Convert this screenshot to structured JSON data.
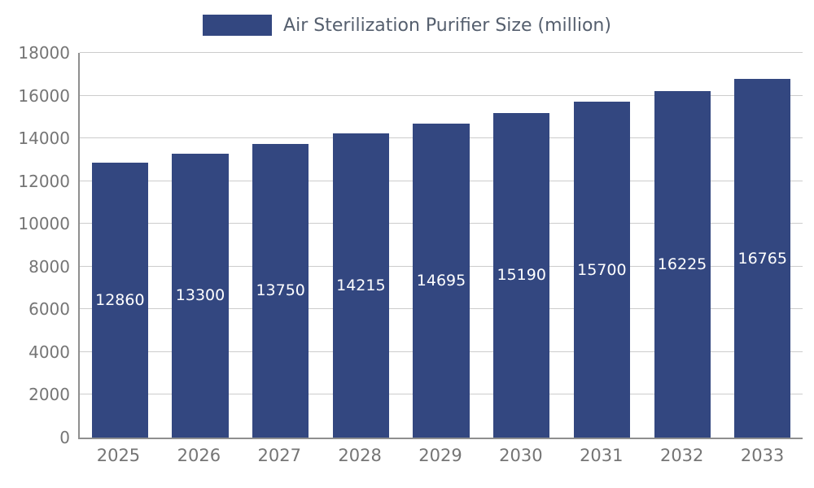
{
  "chart_data": {
    "type": "bar",
    "title": "Air Sterilization Purifier Size (million)",
    "categories": [
      "2025",
      "2026",
      "2027",
      "2028",
      "2029",
      "2030",
      "2031",
      "2032",
      "2033"
    ],
    "values": [
      12860,
      13300,
      13750,
      14215,
      14695,
      15190,
      15700,
      16225,
      16765
    ],
    "xlabel": "",
    "ylabel": "",
    "ylim": [
      0,
      18000
    ],
    "ytick_step": 2000,
    "grid": true,
    "legend_position": "top",
    "bar_color": "#334780",
    "value_label_color": "#ffffff",
    "axis_text_color": "#757575",
    "gridline_color": "#cccccc"
  }
}
